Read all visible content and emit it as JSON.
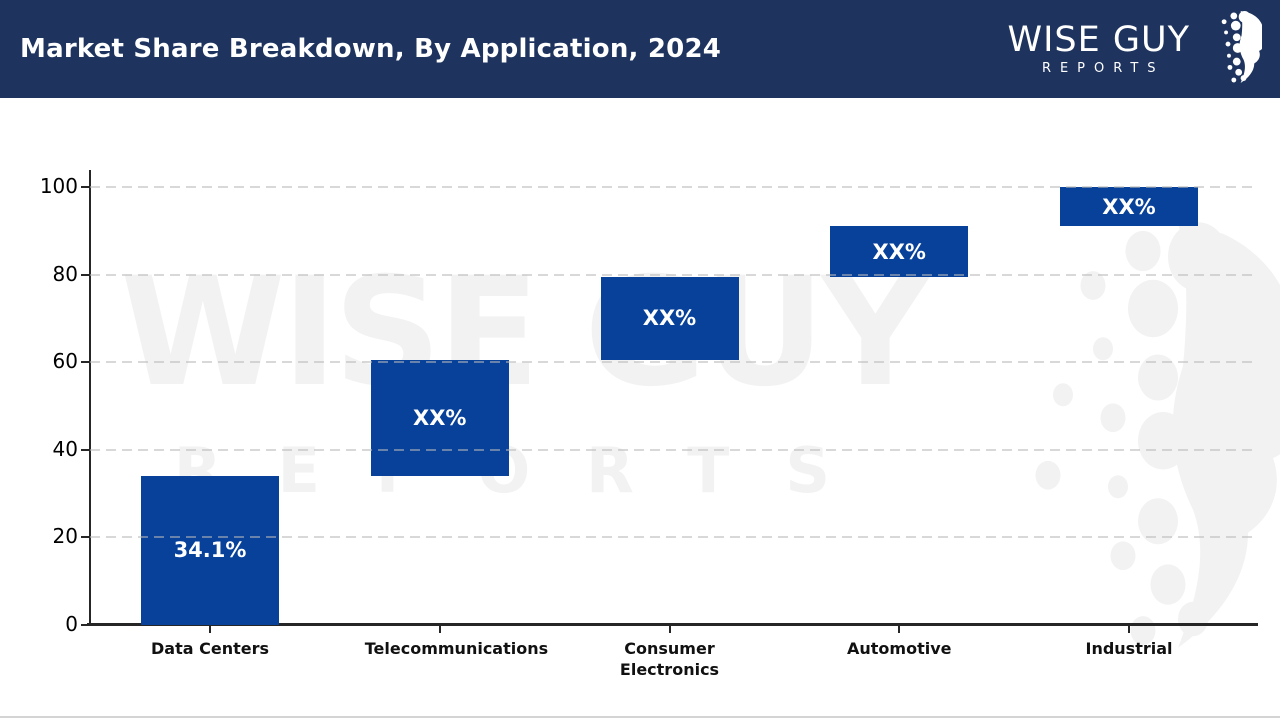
{
  "header": {
    "title": "Market Share Breakdown, By Application, 2024",
    "logo": {
      "line1": "WISE GUY",
      "line2": "REPORTS"
    }
  },
  "watermark": {
    "line1": "WISE GUY",
    "line2": "REPORTS"
  },
  "chart_data": {
    "type": "bar",
    "subtype": "waterfall",
    "title": "Market Share Breakdown, By Application, 2024",
    "categories": [
      "Data Centers",
      "Telecommunications",
      "Consumer Electronics",
      "Automotive",
      "Industrial"
    ],
    "segments": [
      {
        "category": "Data Centers",
        "start": 0,
        "end": 34.1,
        "label": "34.1%"
      },
      {
        "category": "Telecommunications",
        "start": 34.1,
        "end": 60.5,
        "label": "XX%"
      },
      {
        "category": "Consumer Electronics",
        "start": 60.5,
        "end": 79.5,
        "label": "XX%"
      },
      {
        "category": "Automotive",
        "start": 79.5,
        "end": 91,
        "label": "XX%"
      },
      {
        "category": "Industrial",
        "start": 91,
        "end": 100,
        "label": "XX%"
      }
    ],
    "ylim": [
      0,
      100
    ],
    "yticks": [
      0,
      20,
      40,
      60,
      80,
      100
    ],
    "grid": "horizontal-dashed",
    "legend": "none",
    "bar_color": "#07419a"
  },
  "colors": {
    "header_bg": "#1e345f",
    "bar": "#07419a",
    "watermark": "#f2f2f2",
    "grid_dash": "#d9d9d9",
    "axis": "#262626"
  }
}
